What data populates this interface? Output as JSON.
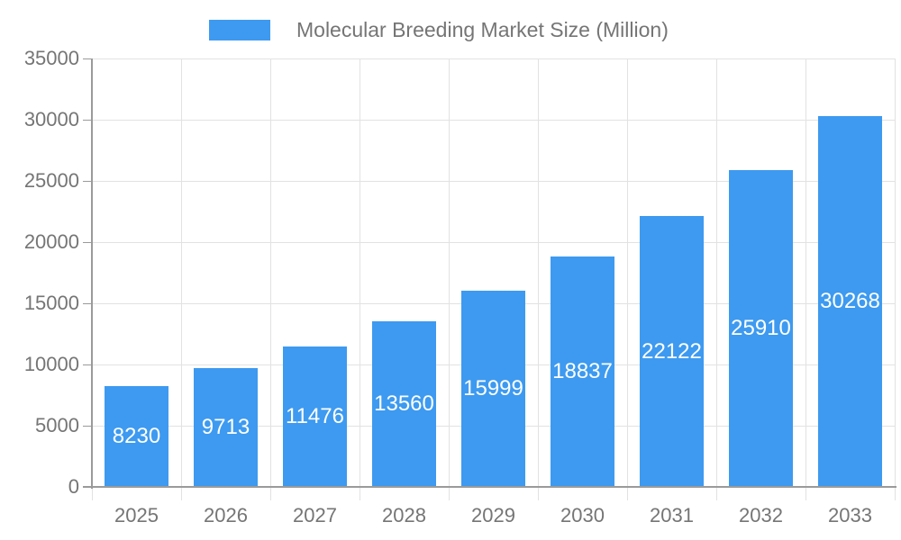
{
  "legend": {
    "label": "Molecular Breeding Market Size (Million)"
  },
  "colors": {
    "bar": "#3D9AF0",
    "grid": "#E2E2E2",
    "axis": "#9A9A9A",
    "axis_text": "#757575",
    "value_text": "#FFFFFF",
    "background": "#FFFFFF"
  },
  "chart_data": {
    "type": "bar",
    "title": "Molecular Breeding Market Size (Million)",
    "series_name": "Molecular Breeding Market Size (Million)",
    "categories": [
      "2025",
      "2026",
      "2027",
      "2028",
      "2029",
      "2030",
      "2031",
      "2032",
      "2033"
    ],
    "values": [
      8230,
      9713,
      11476,
      13560,
      15999,
      18837,
      22122,
      25910,
      30268
    ],
    "xlabel": "",
    "ylabel": "",
    "ylim": [
      0,
      35000
    ],
    "ytick_step": 5000,
    "yticks": [
      0,
      5000,
      10000,
      15000,
      20000,
      25000,
      30000,
      35000
    ],
    "grid": "both",
    "legend_position": "top",
    "value_labels": "inside-center"
  }
}
